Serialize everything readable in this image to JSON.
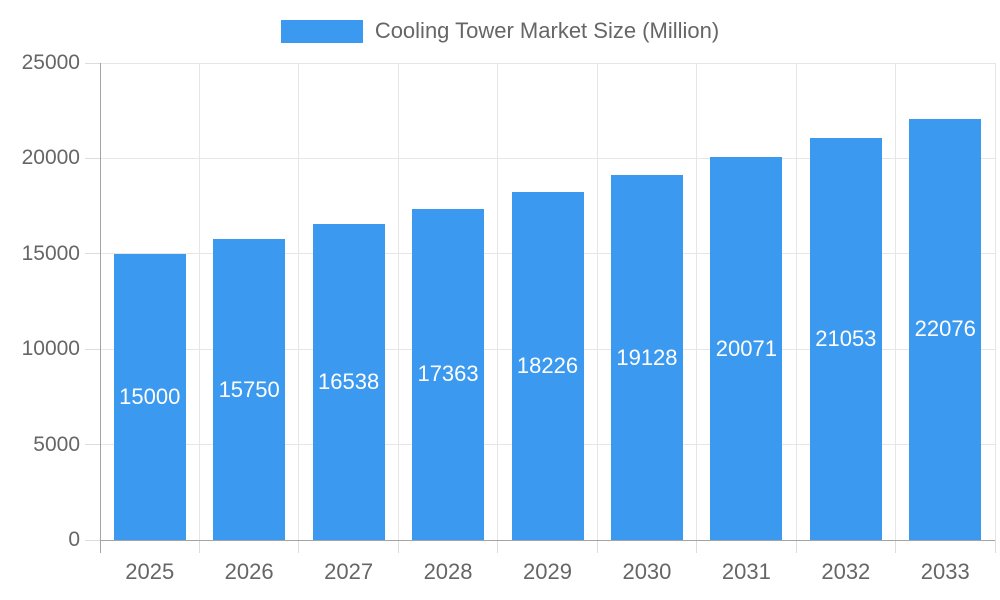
{
  "legend": {
    "label": "Cooling Tower Market Size (Million)"
  },
  "chart_data": {
    "type": "bar",
    "title": "",
    "categories": [
      "2025",
      "2026",
      "2027",
      "2028",
      "2029",
      "2030",
      "2031",
      "2032",
      "2033"
    ],
    "series": [
      {
        "name": "Cooling Tower Market Size (Million)",
        "values": [
          15000,
          15750,
          16538,
          17363,
          18226,
          19128,
          20071,
          21053,
          22076
        ]
      }
    ],
    "value_labels": [
      "15000",
      "15750",
      "16538",
      "17363",
      "18226",
      "19128",
      "20071",
      "21053",
      "22076"
    ],
    "xlabel": "",
    "ylabel": "",
    "ylim": [
      0,
      25000
    ],
    "ytick_step": 5000,
    "yticks": [
      "0",
      "5000",
      "10000",
      "15000",
      "20000",
      "25000"
    ],
    "grid": true,
    "legend_position": "top",
    "colors": {
      "bar": "#3B99EF",
      "gridline": "#e6e6e6",
      "tick": "#dcdcdc",
      "axis": "#a3a3a3",
      "axis_text": "#666666",
      "bar_label_text": "#ffffff"
    }
  }
}
